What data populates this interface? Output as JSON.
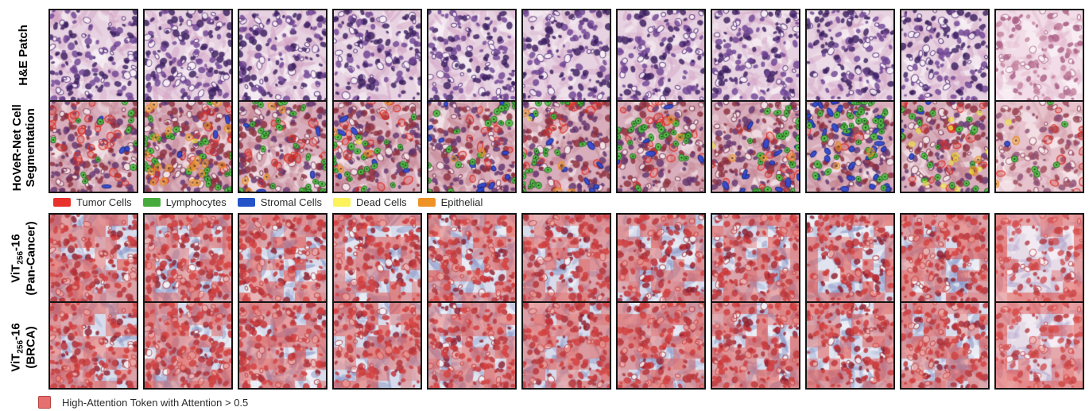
{
  "figure": {
    "border_color": "#141414",
    "rows": [
      {
        "id": "he",
        "lines": [
          "H&E Patch",
          ""
        ]
      },
      {
        "id": "hover",
        "lines": [
          "HoVeR-Net Cell",
          "Segmentation"
        ]
      },
      {
        "id": "vit_pan",
        "prefix": "ViT",
        "sub": "256",
        "suffix": "-16",
        "line2": "(Pan-Cancer)"
      },
      {
        "id": "vit_brca",
        "prefix": "ViT",
        "sub": "256",
        "suffix": "-16",
        "line2": "(BRCA)"
      }
    ],
    "legend_cells": {
      "items": [
        {
          "label": "Tumor Cells",
          "color": "#e8312a"
        },
        {
          "label": "Lymphocytes",
          "color": "#46ab3c"
        },
        {
          "label": "Stromal Cells",
          "color": "#2453c9"
        },
        {
          "label": "Dead Cells",
          "color": "#fbf359"
        },
        {
          "label": "Epithelial",
          "color": "#ef9226"
        }
      ]
    },
    "legend_attention": {
      "label": "High-Attention Token with Attention > 0.5",
      "swatch_color": "#e4706f",
      "swatch_border": "#b5413d"
    },
    "palettes": {
      "he": {
        "bg": "#e7d2e1",
        "white": "#f7f0f5",
        "strand": "#d2a2c3",
        "nucA": "#3c2060",
        "nucB": "#6f4494",
        "ring": "#56307c"
      },
      "hover": {
        "bg": "#d9aebc",
        "white": "#f3e6ea",
        "strand": "#c2828f",
        "nucA": "#8c2f3e",
        "nucB": "#63356e",
        "ring": "#7c3350"
      },
      "vit": {
        "bg": "#d7dbeb",
        "white": "#f2f3f8",
        "strand": "#8694c6",
        "nucA": "#c22f35",
        "nucB": "#8f1f2e",
        "ring": "#a83b40"
      },
      "pale_he": {
        "bg": "#f1dce7",
        "white": "#faf2f6",
        "strand": "#e3b7cd",
        "nucA": "#aa5f86",
        "nucB": "#c4839f",
        "ring": "#b06a8c"
      },
      "pale_hover": {
        "bg": "#e6c3cd",
        "white": "#f8ecef",
        "strand": "#d6a2ad",
        "nucA": "#a04a58",
        "nucB": "#8f4f74",
        "ring": "#95455c"
      },
      "pale_vit": {
        "bg": "#e6dce8",
        "white": "#f8f2f7",
        "strand": "#b3a6cd",
        "nucA": "#cf5459",
        "nucB": "#b03a42",
        "ring": "#c14a50"
      },
      "attention_token": "#e04e48",
      "overlay": {
        "tumor_stroke": "#e02a1f",
        "tumor_fill": "rgba(214,60,50,0.28)",
        "lymph_fill": "#57c148",
        "lymph_stroke": "#1d6e22",
        "lymph_dot": "#143f16",
        "stromal_fill": "#3049cf",
        "stromal_stroke": "#17277f",
        "dead_fill": "rgba(250,244,96,0.55)",
        "dead_stroke": "#e6dc2d",
        "epith_fill": "rgba(242,160,58,0.5)",
        "epith_stroke": "#e88d1e",
        "epith_dot": "#5c3a10"
      }
    },
    "token_size": 14,
    "columns": [
      {
        "seed": 11,
        "density": 155,
        "overlays": {
          "tumor": 26,
          "lymphocyte": 12,
          "stromal": 4,
          "dead": 0,
          "epithelial": 0
        },
        "attention": {
          "pan": 0.62,
          "brca": 0.72,
          "edge": 0.88
        }
      },
      {
        "seed": 22,
        "density": 160,
        "overlays": {
          "tumor": 20,
          "lymphocyte": 28,
          "stromal": 3,
          "dead": 1,
          "epithelial": 22
        },
        "attention": {
          "pan": 0.62,
          "brca": 0.72,
          "edge": 0.88
        }
      },
      {
        "seed": 33,
        "density": 155,
        "overlays": {
          "tumor": 16,
          "lymphocyte": 30,
          "stromal": 4,
          "dead": 0,
          "epithelial": 5
        },
        "attention": {
          "pan": 0.6,
          "brca": 0.7,
          "edge": 0.88
        }
      },
      {
        "seed": 44,
        "density": 150,
        "overlays": {
          "tumor": 18,
          "lymphocyte": 24,
          "stromal": 6,
          "dead": 1,
          "epithelial": 4
        },
        "attention": {
          "pan": 0.62,
          "brca": 0.72,
          "edge": 0.88
        }
      },
      {
        "seed": 55,
        "density": 150,
        "overlays": {
          "tumor": 14,
          "lymphocyte": 22,
          "stromal": 16,
          "dead": 0,
          "epithelial": 2
        },
        "attention": {
          "pan": 0.58,
          "brca": 0.7,
          "edge": 0.88
        }
      },
      {
        "seed": 66,
        "density": 152,
        "overlays": {
          "tumor": 18,
          "lymphocyte": 26,
          "stromal": 8,
          "dead": 1,
          "epithelial": 4
        },
        "attention": {
          "pan": 0.62,
          "brca": 0.72,
          "edge": 0.88
        }
      },
      {
        "seed": 77,
        "density": 150,
        "overlays": {
          "tumor": 20,
          "lymphocyte": 28,
          "stromal": 5,
          "dead": 0,
          "epithelial": 2
        },
        "attention": {
          "pan": 0.62,
          "brca": 0.72,
          "edge": 0.88
        }
      },
      {
        "seed": 88,
        "density": 150,
        "overlays": {
          "tumor": 16,
          "lymphocyte": 24,
          "stromal": 12,
          "dead": 1,
          "epithelial": 3
        },
        "attention": {
          "pan": 0.64,
          "brca": 0.74,
          "edge": 0.88
        }
      },
      {
        "seed": 99,
        "density": 148,
        "overlays": {
          "tumor": 4,
          "lymphocyte": 40,
          "stromal": 34,
          "dead": 0,
          "epithelial": 3
        },
        "attention": {
          "pan": 0.5,
          "brca": 0.66,
          "edge": 0.88
        }
      },
      {
        "seed": 110,
        "density": 150,
        "overlays": {
          "tumor": 18,
          "lymphocyte": 22,
          "stromal": 4,
          "dead": 14,
          "epithelial": 2
        },
        "attention": {
          "pan": 0.62,
          "brca": 0.72,
          "edge": 0.88
        }
      },
      {
        "seed": 121,
        "density": 115,
        "pale": true,
        "overlays": {
          "tumor": 12,
          "lymphocyte": 6,
          "stromal": 1,
          "dead": 1,
          "epithelial": 2
        },
        "attention": {
          "pan": 0.18,
          "brca": 0.5,
          "edge": 1.0
        }
      }
    ]
  }
}
